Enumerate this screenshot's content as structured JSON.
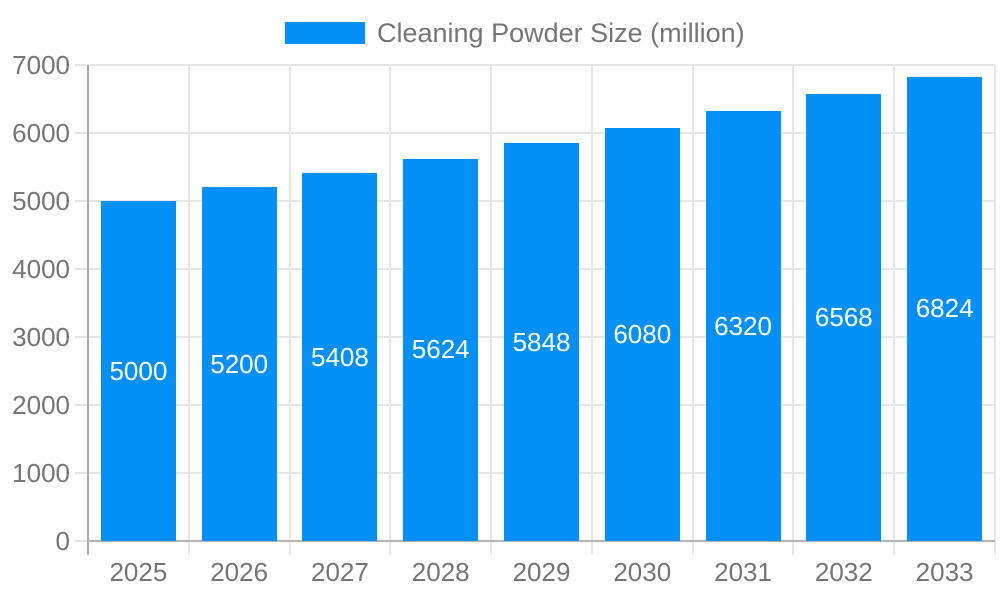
{
  "chart_data": {
    "type": "bar",
    "title": "",
    "legend_position": "top-center",
    "legend_entries": [
      "Cleaning Powder Size (million)"
    ],
    "categories": [
      "2025",
      "2026",
      "2027",
      "2028",
      "2029",
      "2030",
      "2031",
      "2032",
      "2033"
    ],
    "series": [
      {
        "name": "Cleaning Powder Size (million)",
        "values": [
          5000,
          5200,
          5408,
          5624,
          5848,
          6080,
          6320,
          6568,
          6824
        ]
      }
    ],
    "value_labels": "inside-bars-centered",
    "xlabel": "",
    "ylabel": "",
    "ylim": [
      0,
      7000
    ],
    "ytick_step": 1000,
    "yticks": [
      0,
      1000,
      2000,
      3000,
      4000,
      5000,
      6000,
      7000
    ],
    "grid": true,
    "colors": {
      "bar": "#0590F8",
      "grid_line": "#E6E6E6",
      "y_axis_line": "#ABABAB",
      "x_axis_line": "#B3B3B3",
      "tick_label": "#757575",
      "legend_text": "#757575",
      "bar_value_label": "#FFFFFF",
      "background": "#FFFFFF"
    }
  }
}
